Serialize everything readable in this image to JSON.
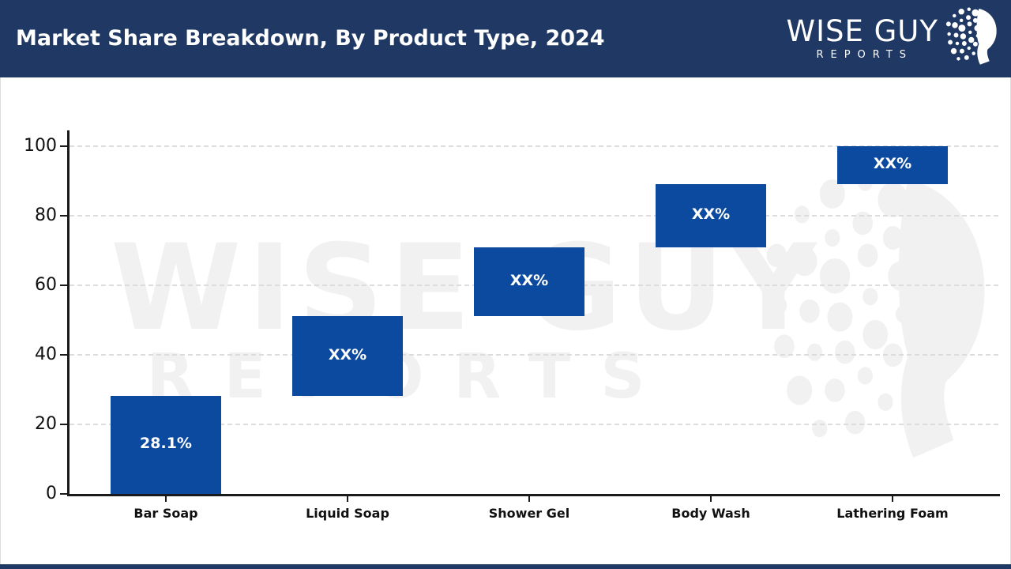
{
  "header": {
    "title": "Market Share Breakdown, By Product Type, 2024",
    "logo": {
      "line1": "WISE GUY",
      "line2": "REPORTS"
    },
    "bg_color": "#1f3864"
  },
  "watermark": {
    "line1": "WISE GUY",
    "line2": "REPORTS"
  },
  "chart_data": {
    "type": "bar",
    "subtype": "waterfall",
    "title": "Market Share Breakdown, By Product Type, 2024",
    "categories": [
      "Bar Soap",
      "Liquid Soap",
      "Shower Gel",
      "Body Wash",
      "Lathering Foam"
    ],
    "segments": [
      {
        "category": "Bar Soap",
        "start": 0,
        "end": 28.1,
        "label": "28.1%"
      },
      {
        "category": "Liquid Soap",
        "start": 28.1,
        "end": 51.1,
        "label": "XX%"
      },
      {
        "category": "Shower Gel",
        "start": 51.1,
        "end": 70.8,
        "label": "XX%"
      },
      {
        "category": "Body Wash",
        "start": 70.8,
        "end": 89.1,
        "label": "XX%"
      },
      {
        "category": "Lathering Foam",
        "start": 89.1,
        "end": 100,
        "label": "XX%"
      }
    ],
    "xlabel": "",
    "ylabel": "",
    "y_ticks": [
      0,
      20,
      40,
      60,
      80,
      100
    ],
    "ylim": [
      0,
      105
    ],
    "bar_color": "#0b4a9e",
    "bar_label_color": "#ffffff",
    "grid": {
      "horizontal": true,
      "style": "dashed",
      "color": "#dcdcdc"
    },
    "legend": "none"
  }
}
